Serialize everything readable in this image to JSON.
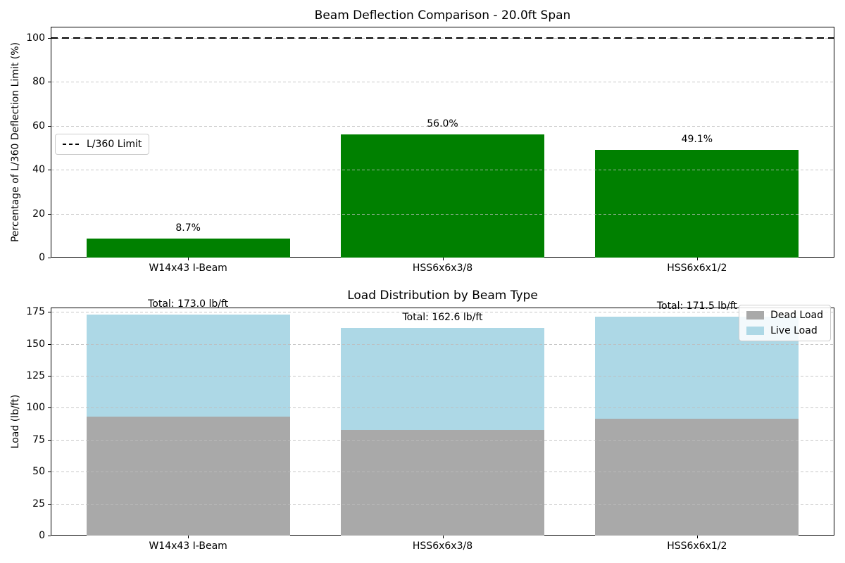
{
  "figure": {
    "background": "#ffffff"
  },
  "chart_data": [
    {
      "type": "bar",
      "title": "Beam Deflection Comparison - 20.0ft Span",
      "ylabel": "Percentage of L/360 Deflection Limit (%)",
      "categories": [
        "W14x43 I-Beam",
        "HSS6x6x3/8",
        "HSS6x6x1/2"
      ],
      "values": [
        8.7,
        56.0,
        49.1
      ],
      "bar_labels": [
        "8.7%",
        "56.0%",
        "49.1%"
      ],
      "bar_color": "#008000",
      "ylim": [
        0,
        105
      ],
      "yticks": [
        0,
        20,
        40,
        60,
        80,
        100
      ],
      "grid": true,
      "legend_position": "center left",
      "reference_line": {
        "value": 100,
        "color": "#000000",
        "linestyle": "dashed"
      },
      "legend": {
        "items": [
          {
            "label": "L/360 Limit",
            "swatch": "dashed-line",
            "color": "#000000"
          }
        ]
      }
    },
    {
      "type": "stacked-bar",
      "title": "Load Distribution by Beam Type",
      "ylabel": "Load (lb/ft)",
      "categories": [
        "W14x43 I-Beam",
        "HSS6x6x3/8",
        "HSS6x6x1/2"
      ],
      "series": [
        {
          "name": "Dead Load",
          "color": "#a9a9a9",
          "values": [
            93.0,
            82.6,
            91.5
          ]
        },
        {
          "name": "Live Load",
          "color": "#add8e6",
          "values": [
            80.0,
            80.0,
            80.0
          ]
        }
      ],
      "totals": [
        173.0,
        162.6,
        171.5
      ],
      "total_labels": [
        "Total: 173.0 lb/ft",
        "Total: 162.6 lb/ft",
        "Total: 171.5 lb/ft"
      ],
      "ylim": [
        0,
        178.5
      ],
      "yticks": [
        0,
        25,
        50,
        75,
        100,
        125,
        150,
        175
      ],
      "grid": true,
      "legend_position": "upper right",
      "legend": {
        "items": [
          {
            "label": "Dead Load",
            "swatch": "patch",
            "color": "#a9a9a9"
          },
          {
            "label": "Live Load",
            "swatch": "patch",
            "color": "#add8e6"
          }
        ]
      }
    }
  ]
}
